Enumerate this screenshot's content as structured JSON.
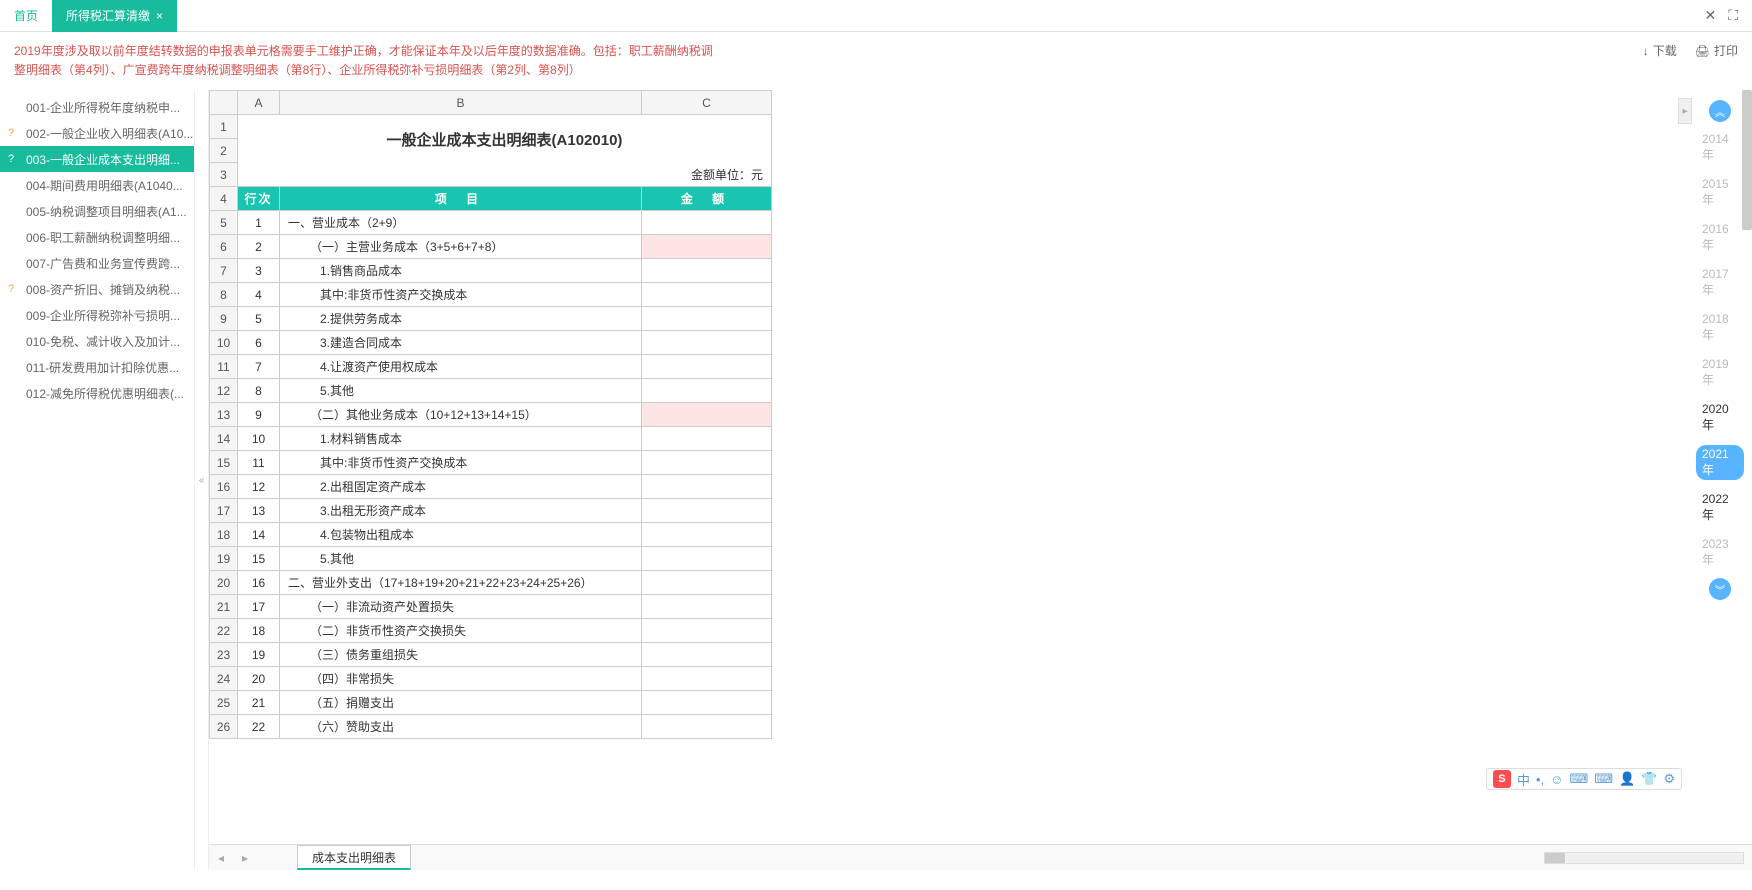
{
  "tabs": {
    "home": "首页",
    "current": "所得税汇算清缴"
  },
  "notice": "2019年度涉及取以前年度结转数据的申报表单元格需要手工维护正确，才能保证本年及以后年度的数据准确。包括：职工薪酬纳税调整明细表（第4列）、广宣费跨年度纳税调整明细表（第8行）、企业所得税弥补亏损明细表（第2列、第8列）",
  "actions": {
    "download": "下载",
    "print": "打印"
  },
  "sidebar": [
    {
      "label": "001-企业所得税年度纳税申...",
      "mark": ""
    },
    {
      "label": "002-一般企业收入明细表(A10...",
      "mark": "?"
    },
    {
      "label": "003-一般企业成本支出明细...",
      "mark": "?",
      "active": true
    },
    {
      "label": "004-期间费用明细表(A1040...",
      "mark": ""
    },
    {
      "label": "005-纳税调整项目明细表(A1...",
      "mark": ""
    },
    {
      "label": "006-职工薪酬纳税调整明细...",
      "mark": ""
    },
    {
      "label": "007-广告费和业务宣传费跨...",
      "mark": ""
    },
    {
      "label": "008-资产折旧、摊销及纳税...",
      "mark": "?"
    },
    {
      "label": "009-企业所得税弥补亏损明...",
      "mark": ""
    },
    {
      "label": "010-免税、减计收入及加计...",
      "mark": ""
    },
    {
      "label": "011-研发费用加计扣除优惠...",
      "mark": ""
    },
    {
      "label": "012-减免所得税优惠明细表(...",
      "mark": ""
    }
  ],
  "sheet": {
    "title": "一般企业成本支出明细表(A102010)",
    "unit": "金额单位：元",
    "cols": [
      "A",
      "B",
      "C"
    ],
    "headers": {
      "A": "行次",
      "B": "项            目",
      "C": "金      额"
    },
    "rows": [
      {
        "n": 1,
        "item": "一、营业成本（2+9）",
        "ind": ""
      },
      {
        "n": 2,
        "item": "（一）主营业务成本（3+5+6+7+8）",
        "ind": "ind1",
        "pink": true
      },
      {
        "n": 3,
        "item": "1.销售商品成本",
        "ind": "ind2"
      },
      {
        "n": 4,
        "item": "其中:非货币性资产交换成本",
        "ind": "ind2"
      },
      {
        "n": 5,
        "item": "2.提供劳务成本",
        "ind": "ind2"
      },
      {
        "n": 6,
        "item": "3.建造合同成本",
        "ind": "ind2"
      },
      {
        "n": 7,
        "item": "4.让渡资产使用权成本",
        "ind": "ind2"
      },
      {
        "n": 8,
        "item": "5.其他",
        "ind": "ind2"
      },
      {
        "n": 9,
        "item": "（二）其他业务成本（10+12+13+14+15）",
        "ind": "ind1",
        "pink": true
      },
      {
        "n": 10,
        "item": "1.材料销售成本",
        "ind": "ind2"
      },
      {
        "n": 11,
        "item": "其中:非货币性资产交换成本",
        "ind": "ind2"
      },
      {
        "n": 12,
        "item": "2.出租固定资产成本",
        "ind": "ind2"
      },
      {
        "n": 13,
        "item": "3.出租无形资产成本",
        "ind": "ind2"
      },
      {
        "n": 14,
        "item": "4.包装物出租成本",
        "ind": "ind2"
      },
      {
        "n": 15,
        "item": "5.其他",
        "ind": "ind2"
      },
      {
        "n": 16,
        "item": "二、营业外支出（17+18+19+20+21+22+23+24+25+26）",
        "ind": ""
      },
      {
        "n": 17,
        "item": "（一）非流动资产处置损失",
        "ind": "ind1"
      },
      {
        "n": 18,
        "item": "（二）非货币性资产交换损失",
        "ind": "ind1"
      },
      {
        "n": 19,
        "item": "（三）债务重组损失",
        "ind": "ind1"
      },
      {
        "n": 20,
        "item": "（四）非常损失",
        "ind": "ind1"
      },
      {
        "n": 21,
        "item": "（五）捐赠支出",
        "ind": "ind1"
      },
      {
        "n": 22,
        "item": "（六）赞助支出",
        "ind": "ind1"
      }
    ],
    "tab": "成本支出明细表"
  },
  "years": [
    "2014年",
    "2015年",
    "2016年",
    "2017年",
    "2018年",
    "2019年",
    "2020年",
    "2021年",
    "2022年",
    "2023年"
  ],
  "year_active": "2021年",
  "year_near": [
    "2020年",
    "2022年"
  ],
  "ime": {
    "logo": "S",
    "items": [
      "中",
      "•,",
      "☺",
      "⌨",
      "⌨",
      "👤",
      "👕",
      "⚙"
    ]
  }
}
